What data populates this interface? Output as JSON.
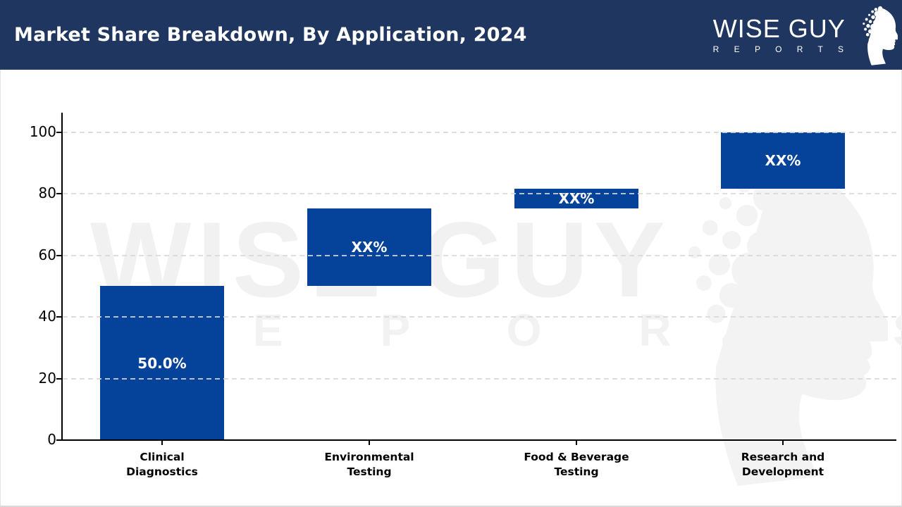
{
  "header": {
    "title": "Market Share Breakdown, By Application, 2024",
    "logo": {
      "line1": "WISE GUY",
      "line2": "R E P O R T S"
    }
  },
  "watermark": {
    "line1": "WISE GUY",
    "line2": "R E P O R T S"
  },
  "chart_data": {
    "type": "bar",
    "subtype": "waterfall",
    "title": "Market Share Breakdown, By Application, 2024",
    "categories": [
      [
        "Clinical",
        "Diagnostics"
      ],
      [
        "Environmental",
        "Testing"
      ],
      [
        "Food & Beverage",
        "Testing"
      ],
      [
        "Research and",
        "Development"
      ]
    ],
    "series": [
      {
        "name": "Market Share",
        "segments": [
          {
            "start": 0,
            "end": 50,
            "label": "50.0%"
          },
          {
            "start": 50,
            "end": 75.1,
            "label": "XX%"
          },
          {
            "start": 75.1,
            "end": 81.5,
            "label": "XX%"
          },
          {
            "start": 81.5,
            "end": 100,
            "label": "XX%"
          }
        ]
      }
    ],
    "yticks": [
      0,
      20,
      40,
      60,
      80,
      100
    ],
    "ylim": [
      0,
      105
    ],
    "grid": "dashed-horizontal",
    "bar_color": "#05429a",
    "grid_color": "#d8d8d8",
    "header_color": "#1f3660",
    "axis_color": "#000000",
    "label_color_on_bar": "#ffffff"
  }
}
